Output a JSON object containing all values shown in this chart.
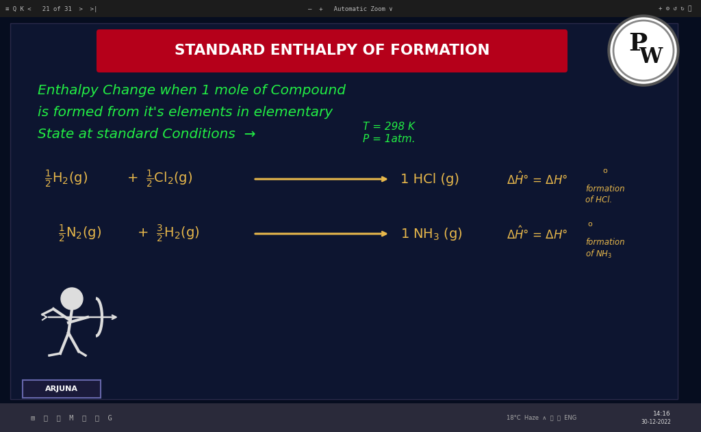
{
  "bg_color": "#060d1f",
  "slide_bg": "#0d1530",
  "title_text": "STANDARD ENTHALPY OF FORMATION",
  "title_bg": "#b5001a",
  "title_fg": "#ffffff",
  "body_text_color": "#22ee44",
  "formula_color": "#e8b84b",
  "arrow_color": "#e8b84b",
  "pw_circle_bg": "#ffffff",
  "pw_text_color": "#111111",
  "line1": "Enthalpy Change when 1 mole of Compound",
  "line2": "is formed from it's elements in elementary",
  "line3": "State at standard Conditions →",
  "line3b": "T = 298 K",
  "line3c": "P = 1atm.",
  "arjuna_text": "ARJUNA",
  "toolbar_color": "#1c1c1c",
  "taskbar_color": "#2a2a3a"
}
